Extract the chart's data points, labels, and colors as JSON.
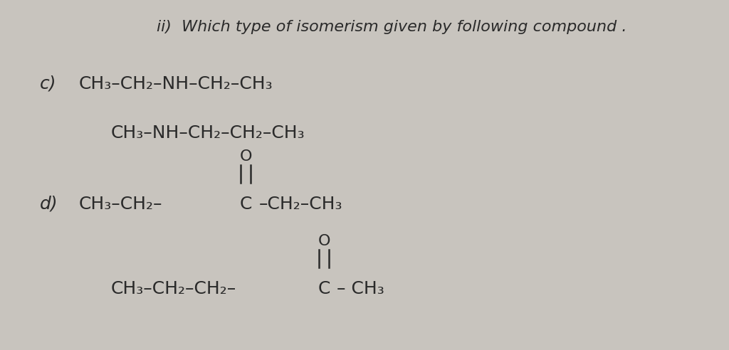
{
  "background_color": "#c8c4be",
  "title_text": "ii)  Which type of isomerism given by following compound .",
  "title_fontsize": 16,
  "title_style": "italic",
  "font_color": "#2a2a2a",
  "formula_fontsize": 18,
  "label_fontsize": 18,
  "sub_fontsize": 13,
  "c_label": "c)",
  "d_label": "d)",
  "c_line1": "CH₃–CH₂–NH–CH₂–CH₃",
  "c_line2": "CH₃–NH–CH₂–CH₂–CH₃",
  "d_line1_left": "CH₃–CH₂–",
  "d_line1_right": "–CH₂–CH₃",
  "d_line1_c": "C",
  "d_line1_o": "O",
  "d_line2_left": "CH₃–CH₂–CH₂–",
  "d_line2_right": "– CH₃",
  "d_line2_c": "C",
  "d_line2_o": "O"
}
